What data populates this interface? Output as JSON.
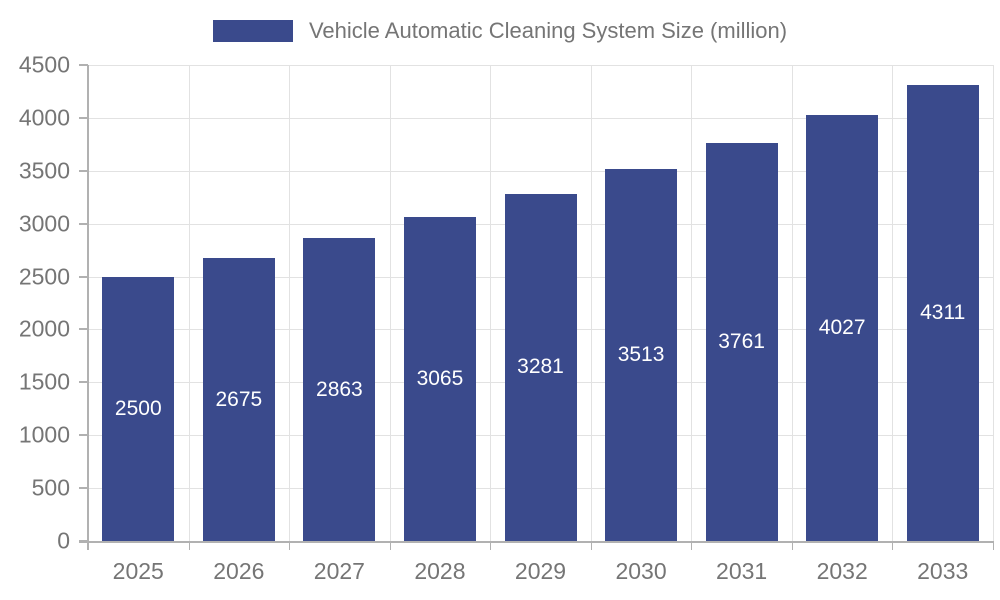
{
  "legend": {
    "label": "Vehicle Automatic Cleaning System Size (million)"
  },
  "colors": {
    "bar": "#3A4A8C",
    "grid": "#E2E2E2",
    "axis": "#B1B1B1",
    "tick_text": "#757575",
    "value_label": "#FFFFFF"
  },
  "chart_data": {
    "type": "bar",
    "title": "Vehicle Automatic Cleaning System Size (million)",
    "categories": [
      "2025",
      "2026",
      "2027",
      "2028",
      "2029",
      "2030",
      "2031",
      "2032",
      "2033"
    ],
    "values": [
      2500,
      2675,
      2863,
      3065,
      3281,
      3513,
      3761,
      4027,
      4311
    ],
    "xlabel": "",
    "ylabel": "",
    "ylim": [
      0,
      4500
    ],
    "yticks": [
      0,
      500,
      1000,
      1500,
      2000,
      2500,
      3000,
      3500,
      4000,
      4500
    ],
    "grid": true,
    "legend_position": "top",
    "value_label_position": "center-of-bar"
  }
}
